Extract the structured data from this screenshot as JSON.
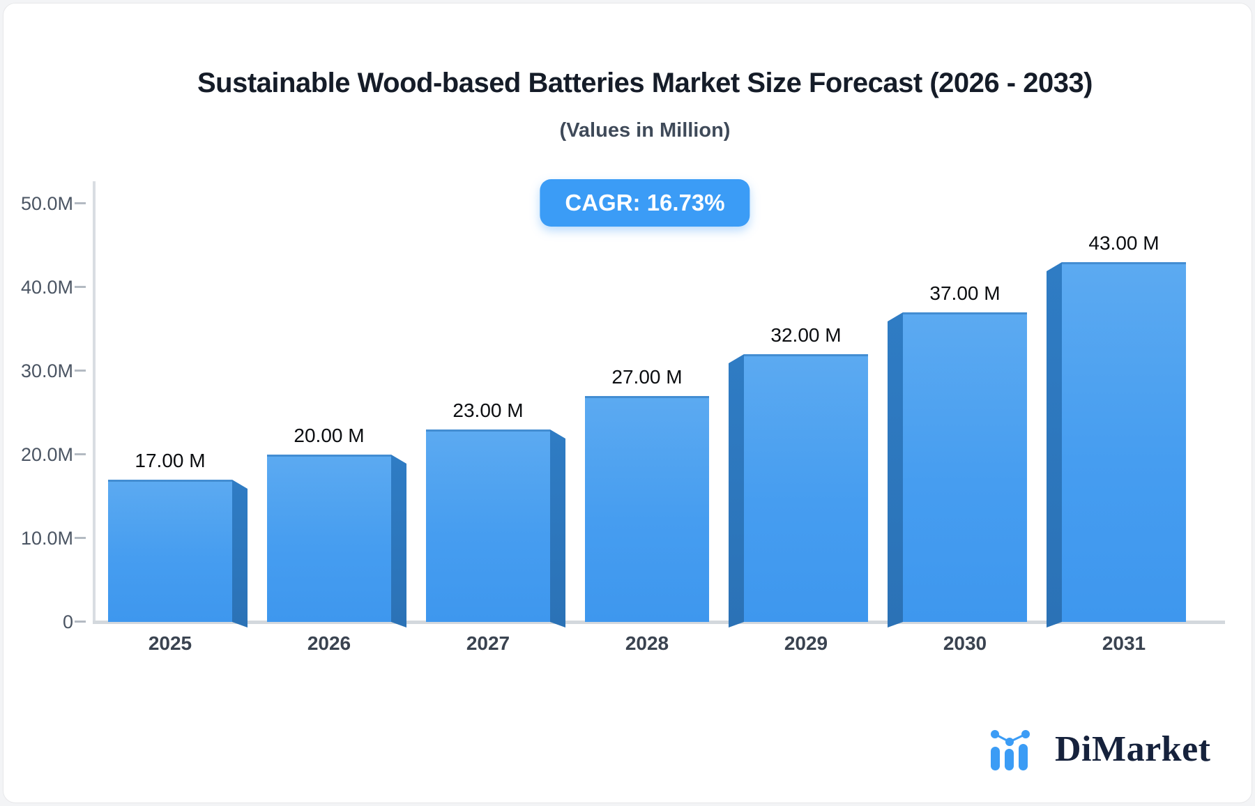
{
  "header": {
    "title": "Sustainable Wood-based Batteries Market Size Forecast (2026 - 2033)",
    "subtitle": "(Values in Million)"
  },
  "badge": {
    "cagr_label": "CAGR: 16.73%",
    "color": "#3b9cf6"
  },
  "chart_data": {
    "type": "bar",
    "categories": [
      "2025",
      "2026",
      "2027",
      "2028",
      "2029",
      "2030",
      "2031"
    ],
    "values": [
      17,
      20,
      23,
      27,
      32,
      37,
      43
    ],
    "value_labels": [
      "17.00 M",
      "20.00 M",
      "23.00 M",
      "27.00 M",
      "32.00 M",
      "37.00 M",
      "43.00 M"
    ],
    "title": "Sustainable Wood-based Batteries Market Size Forecast (2026 - 2033)",
    "subtitle": "(Values in Million)",
    "xlabel": "",
    "ylabel": "",
    "ylim": [
      0,
      50
    ],
    "y_tick_values": [
      50,
      40,
      30,
      20,
      10,
      0
    ],
    "y_tick_labels": [
      "50.0M",
      "40.0M",
      "30.0M",
      "20.0M",
      "10.0M",
      "0"
    ],
    "grid": false,
    "legend": false,
    "bar_style": "3d-perspective-center-vanishing",
    "bar_face_color_top": "#5caaf1",
    "bar_face_color_bottom": "#3e97ee",
    "bar_side_color": "#2e77bd",
    "axis_color": "#d6dade"
  },
  "brand": {
    "name": "DiMarket",
    "icon": "bar-chart-trend-icon",
    "icon_color": "#3b9cf5",
    "text_color": "#16223c"
  }
}
